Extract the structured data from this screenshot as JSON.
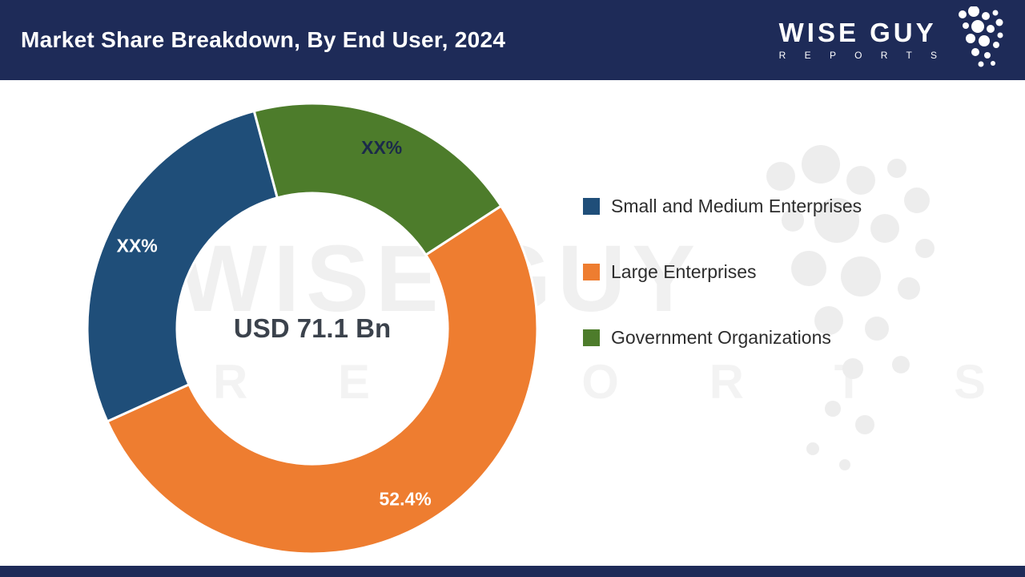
{
  "header": {
    "title": "Market Share Breakdown, By End User, 2024",
    "bg_color": "#1e2b58",
    "logo": {
      "line1": "WISE GUY",
      "line2": "R E P O R T S"
    }
  },
  "watermark": {
    "line1": "WISE GUY",
    "line2": "R E P O R T S"
  },
  "chart_data": {
    "type": "pie",
    "subtype": "donut",
    "title": "Market Share Breakdown, By End User, 2024",
    "center_label": "USD 71.1 Bn",
    "start_angle_deg": 57,
    "hole_ratio": 0.6,
    "legend_position": "right",
    "segments": [
      {
        "name": "Large Enterprises",
        "value": 52.4,
        "label": "52.4%",
        "color": "#ee7d30",
        "label_color": "#ffffff"
      },
      {
        "name": "Small and Medium Enterprises",
        "value": 27.6,
        "label": "XX%",
        "color": "#1f4e79",
        "label_color": "#ffffff"
      },
      {
        "name": "Government Organizations",
        "value": 20.0,
        "label": "XX%",
        "color": "#4d7c2b",
        "label_color": "#1b2a4a"
      }
    ]
  },
  "legend": {
    "items": [
      {
        "label": "Small and Medium Enterprises",
        "color": "#1f4e79"
      },
      {
        "label": "Large Enterprises",
        "color": "#ee7d30"
      },
      {
        "label": "Government Organizations",
        "color": "#4d7c2b"
      }
    ]
  }
}
